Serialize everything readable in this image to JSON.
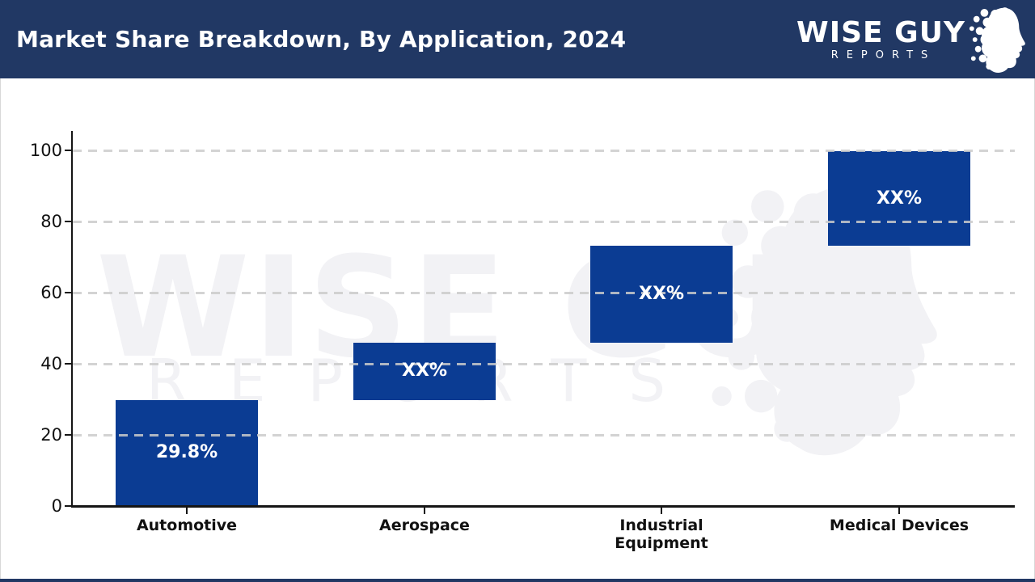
{
  "header": {
    "title": "Market Share Breakdown, By Application, 2024"
  },
  "logo": {
    "name_top": "WISE GUY",
    "name_bottom": "REPORTS"
  },
  "watermark": {
    "name_top": "WISE GUY",
    "name_bottom": "REPORTS"
  },
  "chart_data": {
    "type": "bar",
    "subtype": "waterfall",
    "title": "Market Share Breakdown, By Application, 2024",
    "unit": "%",
    "categories": [
      "Automotive",
      "Aerospace",
      "Industrial\nEquipment",
      "Medical Devices"
    ],
    "series": [
      {
        "name": "Market Share",
        "segments": [
          {
            "category": "Automotive",
            "start": 0,
            "end": 29.8,
            "label": "29.8%"
          },
          {
            "category": "Aerospace",
            "start": 29.8,
            "end": 45.9,
            "label": "XX%"
          },
          {
            "category": "Industrial Equipment",
            "start": 45.9,
            "end": 73.1,
            "label": "XX%"
          },
          {
            "category": "Medical Devices",
            "start": 73.1,
            "end": 99.8,
            "label": "XX%"
          }
        ]
      }
    ],
    "yticks": [
      0,
      20,
      40,
      60,
      80,
      100
    ],
    "ylim": [
      0,
      105
    ],
    "grid": true,
    "grid_style": "dashed",
    "legend": "none",
    "bar_color": "#0b3c93",
    "bar_label_color": "#ffffff",
    "axis_color": "#151515",
    "background": "#ffffff"
  },
  "colors": {
    "header_bg": "#213864",
    "footer_bg": "#213864",
    "bar": "#0b3c93",
    "watermark": "#f2f2f5",
    "title_text": "#ffffff"
  }
}
